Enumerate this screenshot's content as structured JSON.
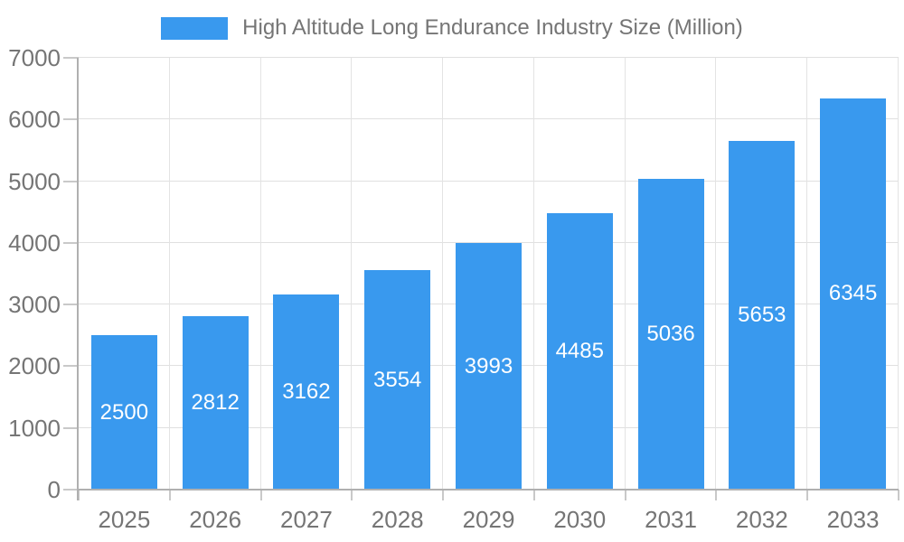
{
  "chart_data": {
    "type": "bar",
    "series_name": "High Altitude Long Endurance Industry Size (Million)",
    "categories": [
      "2025",
      "2026",
      "2027",
      "2028",
      "2029",
      "2030",
      "2031",
      "2032",
      "2033"
    ],
    "values": [
      2500,
      2812,
      3162,
      3554,
      3993,
      4485,
      5036,
      5653,
      6345
    ],
    "ylim": [
      0,
      7000
    ],
    "ytick_step": 1000,
    "yticks": [
      0,
      1000,
      2000,
      3000,
      4000,
      5000,
      6000,
      7000
    ],
    "grid": true,
    "legend_position": "top",
    "value_labels": "inside-center",
    "colors": {
      "bar": "#3999EE",
      "value_label": "#FFFFFF",
      "axis_label": "#757575",
      "legend_text": "#757575",
      "gridline": "#E0E0E0",
      "axis_line": "#B0B0B0",
      "background": "#FFFFFF"
    }
  }
}
